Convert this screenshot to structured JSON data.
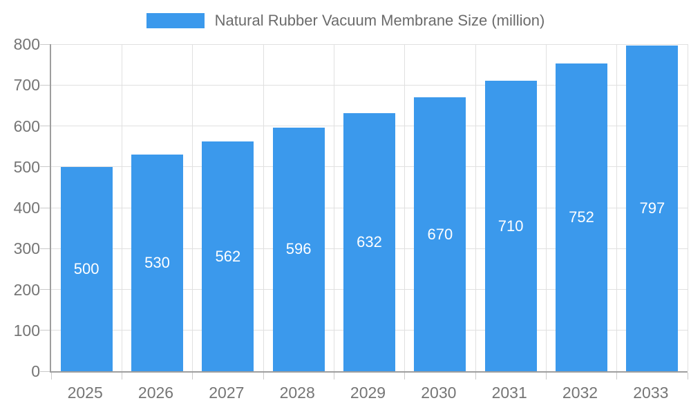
{
  "chart_data": {
    "type": "bar",
    "categories": [
      "2025",
      "2026",
      "2027",
      "2028",
      "2029",
      "2030",
      "2031",
      "2032",
      "2033"
    ],
    "values": [
      500,
      530,
      562,
      596,
      632,
      670,
      710,
      752,
      797
    ],
    "title": "Natural Rubber Vacuum Membrane Size (million)",
    "xlabel": "",
    "ylabel": "",
    "ylim": [
      0,
      800
    ],
    "ytick_step": 100,
    "grid": true,
    "legend_position": "top",
    "data_labels": "inside-center",
    "colors": {
      "bar": "#3B99EC",
      "grid": "#E0E0E0",
      "axis": "#9E9E9E",
      "tick": "#C9C9C9",
      "axis_label": "#757575",
      "legend_text": "#6B6B6B",
      "data_label": "#FFFFFF"
    }
  }
}
